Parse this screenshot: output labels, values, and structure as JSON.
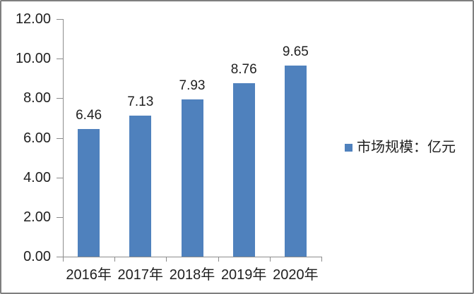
{
  "chart_data": {
    "type": "bar",
    "categories": [
      "2016年",
      "2017年",
      "2018年",
      "2019年",
      "2020年"
    ],
    "values": [
      6.46,
      7.13,
      7.93,
      8.76,
      9.65
    ],
    "data_labels": [
      "6.46",
      "7.13",
      "7.93",
      "8.76",
      "9.65"
    ],
    "title": "",
    "xlabel": "",
    "ylabel": "",
    "ylim": [
      0,
      12
    ],
    "ytick_step": 2,
    "ytick_labels": [
      "0.00",
      "2.00",
      "4.00",
      "6.00",
      "8.00",
      "10.00",
      "12.00"
    ],
    "grid": false,
    "legend_label": "市场规模：亿元",
    "legend_position": "right",
    "bar_color": "#4F81BD",
    "axis_color": "#8C8C8C",
    "text_color": "#1F1F1F",
    "frame_border_color": "#7F7F7F"
  }
}
